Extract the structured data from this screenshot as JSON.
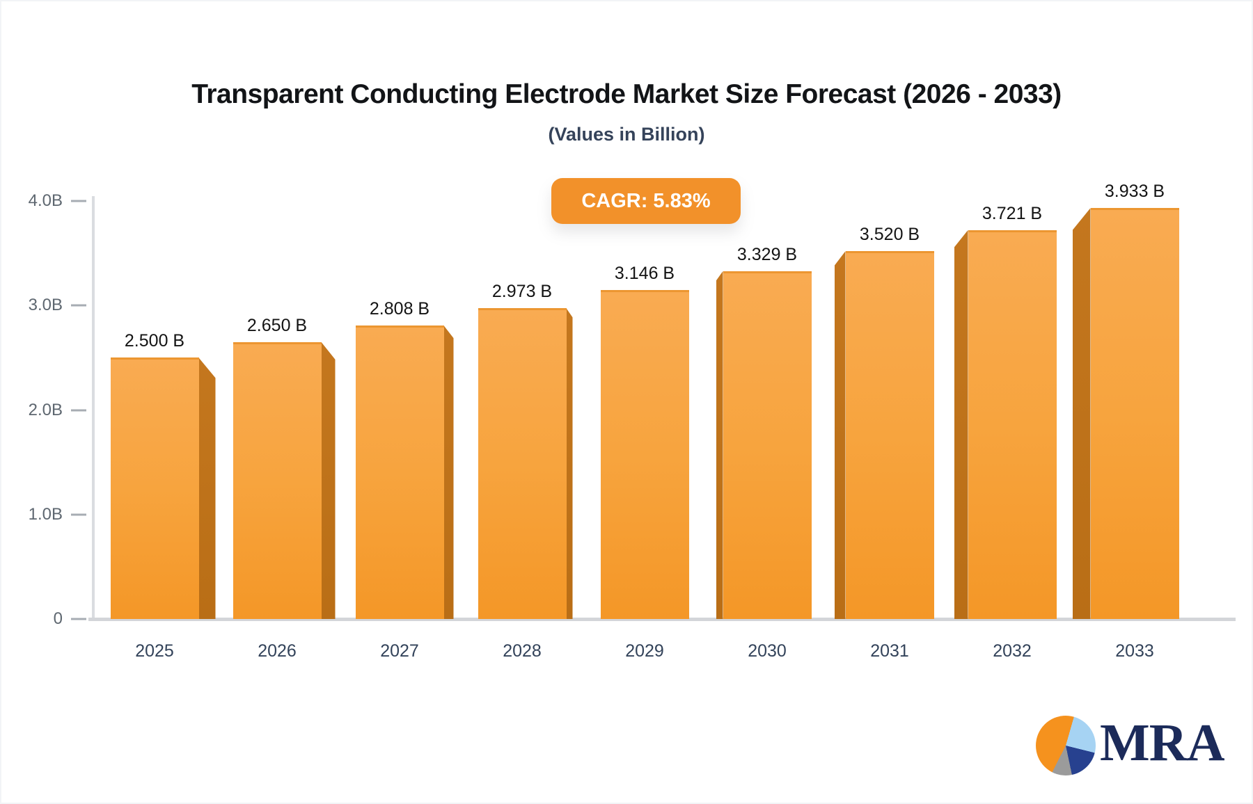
{
  "header": {
    "title": "Transparent Conducting Electrode Market Size Forecast (2026 - 2033)",
    "subtitle": "(Values in Billion)"
  },
  "badge": {
    "label": "CAGR: 5.83%",
    "bg": "#f2912a",
    "text_color": "#ffffff"
  },
  "chart_data": {
    "type": "bar",
    "title": "Transparent Conducting Electrode Market Size Forecast (2026 - 2033)",
    "subtitle": "(Values in Billion)",
    "annotation": "CAGR: 5.83%",
    "categories": [
      "2025",
      "2026",
      "2027",
      "2028",
      "2029",
      "2030",
      "2031",
      "2032",
      "2033"
    ],
    "values": [
      2.5,
      2.65,
      2.808,
      2.973,
      3.146,
      3.329,
      3.52,
      3.721,
      3.933
    ],
    "value_labels": [
      "2.500 B",
      "2.650 B",
      "2.808 B",
      "2.973 B",
      "3.146 B",
      "3.329 B",
      "3.520 B",
      "3.721 B",
      "3.933 B"
    ],
    "xlabel": "",
    "ylabel": "",
    "ylim": [
      0,
      4.0
    ],
    "yticks": [
      {
        "label": "4.0B",
        "value": 4.0
      },
      {
        "label": "3.0B",
        "value": 3.0
      },
      {
        "label": "2.0B",
        "value": 2.0
      },
      {
        "label": "1.0B",
        "value": 1.0
      },
      {
        "label": "0",
        "value": 0.0
      }
    ],
    "grid": false,
    "legend": false,
    "bar_color_top": "#f9ab52",
    "bar_color_bottom": "#f49727",
    "bar_side_color": "#be721c"
  },
  "logo": {
    "text": "MRA",
    "text_color": "#1c2b5a",
    "pie_slices": [
      {
        "name": "orange",
        "color": "#f5921e"
      },
      {
        "name": "light-blue",
        "color": "#a6d3f3"
      },
      {
        "name": "navy",
        "color": "#27418f"
      },
      {
        "name": "gray",
        "color": "#9b9b9b"
      }
    ]
  }
}
